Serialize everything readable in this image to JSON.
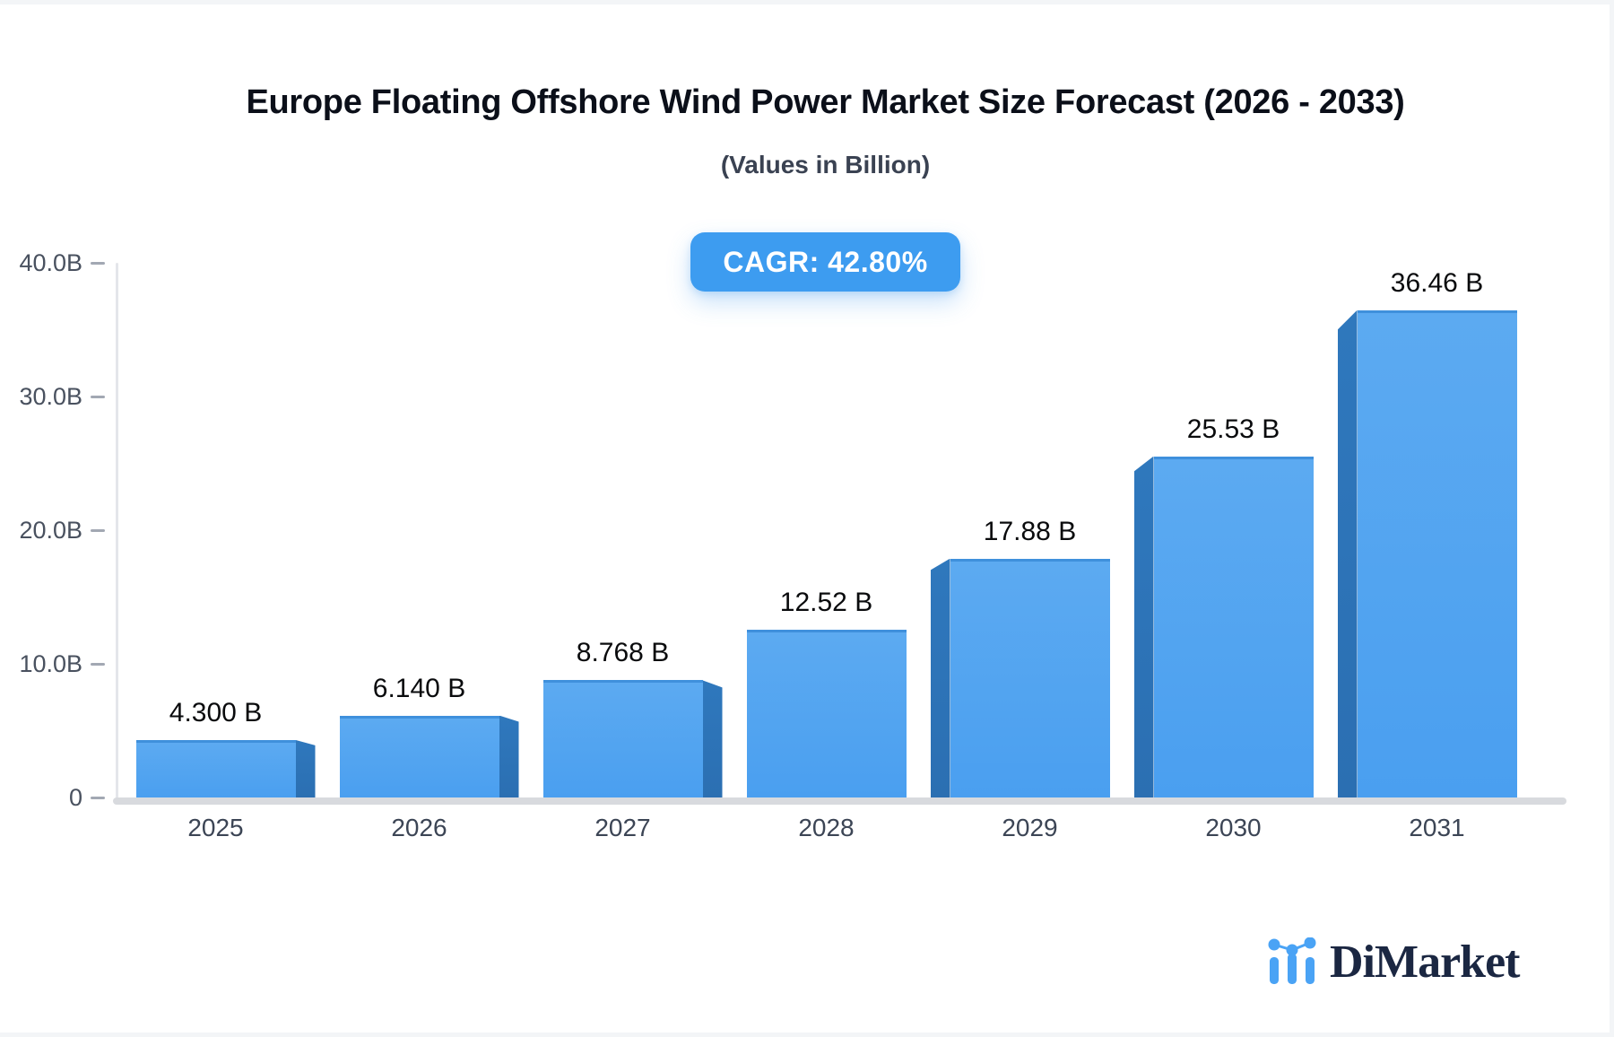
{
  "chart_data": {
    "type": "bar",
    "title": "Europe Floating Offshore Wind Power Market Size Forecast (2026 - 2033)",
    "subtitle": "(Values in Billion)",
    "cagr_badge": "CAGR: 42.80%",
    "categories": [
      "2025",
      "2026",
      "2027",
      "2028",
      "2029",
      "2030",
      "2031"
    ],
    "values": [
      4.3,
      6.14,
      8.768,
      12.52,
      17.88,
      25.53,
      36.46
    ],
    "value_labels": [
      "4.300 B",
      "6.140 B",
      "8.768 B",
      "12.52 B",
      "17.88 B",
      "25.53 B",
      "36.46 B"
    ],
    "xlabel": "",
    "ylabel": "",
    "ylim": [
      0,
      40
    ],
    "y_ticks": [
      {
        "value": 0,
        "label": "0"
      },
      {
        "value": 10,
        "label": "10.0B"
      },
      {
        "value": 20,
        "label": "20.0B"
      },
      {
        "value": 30,
        "label": "30.0B"
      },
      {
        "value": 40,
        "label": "40.0B"
      }
    ],
    "grid": false,
    "legend": false,
    "colors": {
      "bar_face_top": "#5caaf1",
      "bar_face_bottom": "#4a9ff0",
      "bar_top_edge": "#3f90dc",
      "bar_side_top": "#2f78bd",
      "bar_side_bottom": "#2b6fb2",
      "badge_bg": "#3d9cf0",
      "axis_line": "#e4e6ea",
      "baseline": "#d8dade",
      "tick_text": "#49515f",
      "tick_dash": "#a2a8b3"
    }
  },
  "branding": {
    "logo_text": "DiMarket",
    "logo_icon": "bar-chart-logo-icon",
    "logo_icon_color": "#4aa3f5",
    "logo_text_color": "#1b2742"
  }
}
